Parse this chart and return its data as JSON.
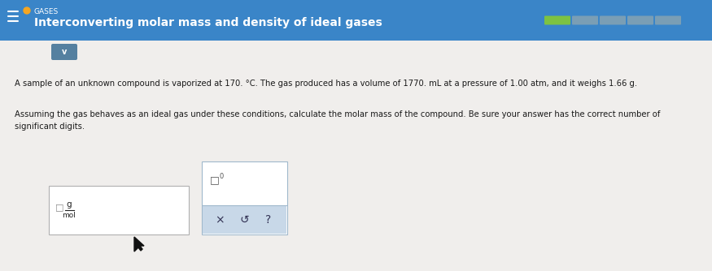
{
  "header_bg": "#3a85c8",
  "header_text_color": "#ffffff",
  "header_small_text": "GASES",
  "header_title": "Interconverting molar mass and density of ideal gases",
  "body_bg": "#e8e8e8",
  "content_bg": "#f0eeec",
  "body_text_color": "#1a1a1a",
  "paragraph1": "A sample of an unknown compound is vaporized at 170. °C. The gas produced has a volume of 1770. mL at a pressure of 1.00 atm, and it weighs 1.66 g.",
  "paragraph2": "Assuming the gas behaves as an ideal gas under these conditions, calculate the molar mass of the compound. Be sure your answer has the correct number of\nsignificant digits.",
  "progress_colors": [
    "#7dc242",
    "#7a9eb5",
    "#7a9eb5",
    "#7a9eb5",
    "#7a9eb5"
  ],
  "nav_icon_color": "#ffffff",
  "dropdown_bg": "#5580a0",
  "circle_color": "#f5a623",
  "answer_box_bottom_bg": "#c8d8e8",
  "answer_box_border": "#a0b8cc",
  "input_box_border": "#b0b0b0",
  "button_color": "#333355"
}
